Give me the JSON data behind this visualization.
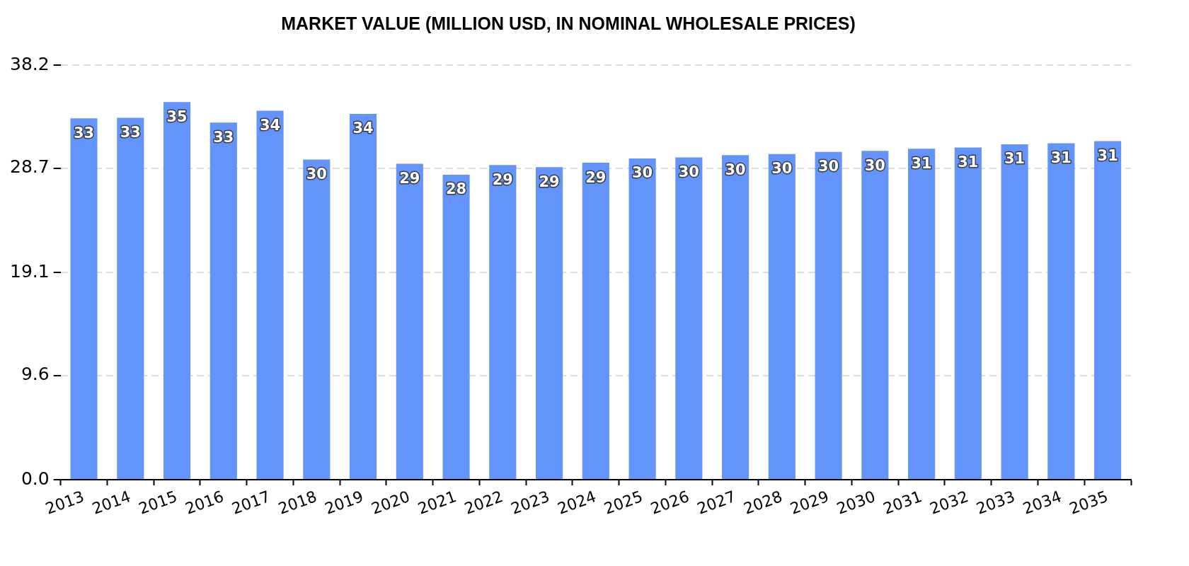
{
  "chart_data": {
    "type": "bar",
    "title": "MARKET VALUE (MILLION USD, IN NOMINAL WHOLESALE PRICES)",
    "categories": [
      "2013",
      "2014",
      "2015",
      "2016",
      "2017",
      "2018",
      "2019",
      "2020",
      "2021",
      "2022",
      "2023",
      "2024",
      "2025",
      "2026",
      "2027",
      "2028",
      "2029",
      "2030",
      "2031",
      "2032",
      "2033",
      "2034",
      "2035"
    ],
    "values": [
      33.3,
      33.35,
      34.8,
      32.9,
      34.0,
      29.5,
      33.7,
      29.1,
      28.1,
      29.0,
      28.8,
      29.2,
      29.6,
      29.7,
      29.9,
      30.0,
      30.2,
      30.3,
      30.5,
      30.6,
      30.9,
      31.0,
      31.2
    ],
    "value_labels": [
      "33",
      "33",
      "35",
      "33",
      "34",
      "30",
      "34",
      "29",
      "28",
      "29",
      "29",
      "29",
      "30",
      "30",
      "30",
      "30",
      "30",
      "30",
      "31",
      "31",
      "31",
      "31",
      "31"
    ],
    "color": "#6394fc",
    "ylim": [
      0,
      38.2
    ],
    "yticks": [
      {
        "value": 0,
        "label": "0.0"
      },
      9.6,
      19.1,
      28.7,
      38.2
    ],
    "grid": "y"
  }
}
